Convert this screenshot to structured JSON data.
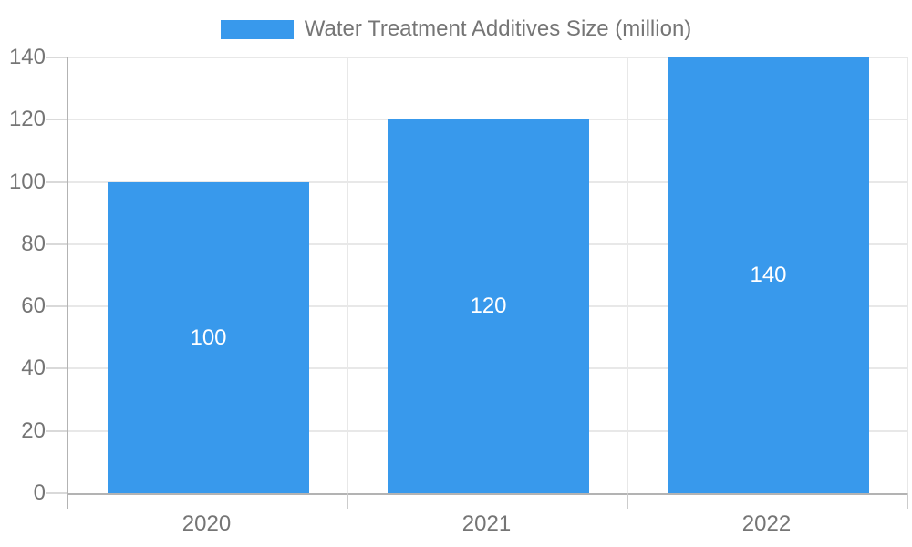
{
  "legend": {
    "label": "Water Treatment Additives Size (million)"
  },
  "chart_data": {
    "type": "bar",
    "title": "Water Treatment Additives Size (million)",
    "categories": [
      "2020",
      "2021",
      "2022"
    ],
    "series": [
      {
        "name": "Water Treatment Additives Size (million)",
        "values": [
          100,
          120,
          140
        ]
      }
    ],
    "data_labels": [
      "100",
      "120",
      "140"
    ],
    "xlabel": "",
    "ylabel": "",
    "ylim": [
      0,
      140
    ],
    "yticks": [
      0,
      20,
      40,
      60,
      80,
      100,
      120,
      140
    ],
    "grid": true,
    "legend_position": "top",
    "colors": {
      "bar": "#3899EC",
      "grid": "#E8E8E8",
      "axis": "#B3B3B3",
      "tick": "#CCCCCC",
      "tick_label_text": "#757575",
      "bar_label_text": "#FFFFFF"
    }
  }
}
